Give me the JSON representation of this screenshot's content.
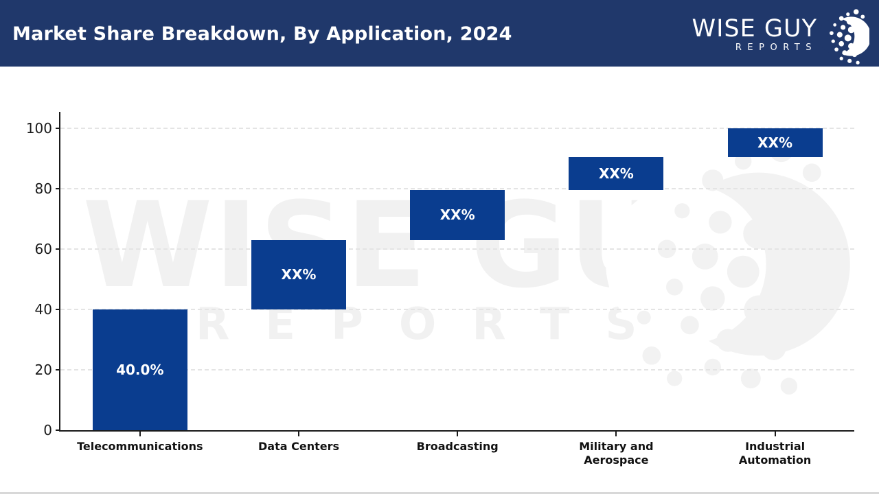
{
  "header": {
    "title": "Market Share Breakdown, By Application, 2024",
    "logo": {
      "line1": "WISE GUY",
      "line2": "REPORTS"
    }
  },
  "watermark": {
    "line1": "WISE GUY",
    "line2": "REPORTS"
  },
  "colors": {
    "header_bg": "#20386b",
    "bar": "#0a3d8f",
    "grid": "#e4e4e4",
    "axis": "#1a1a1a",
    "bar_label": "#ffffff",
    "watermark": "#f1f1f1",
    "bottom_edge": "#d8d8d8"
  },
  "chart_data": {
    "type": "bar",
    "subtype": "waterfall",
    "title": "Market Share Breakdown, By Application, 2024",
    "categories": [
      "Telecommunications",
      "Data Centers",
      "Broadcasting",
      "Military and\nAerospace",
      "Industrial\nAutomation"
    ],
    "segments": [
      {
        "category": "Telecommunications",
        "start": 0,
        "end": 40,
        "label": "40.0%"
      },
      {
        "category": "Data Centers",
        "start": 40,
        "end": 63,
        "label": "XX%"
      },
      {
        "category": "Broadcasting",
        "start": 63,
        "end": 79.5,
        "label": "XX%"
      },
      {
        "category": "Military and Aerospace",
        "start": 79.5,
        "end": 90.5,
        "label": "XX%"
      },
      {
        "category": "Industrial Automation",
        "start": 90.5,
        "end": 100,
        "label": "XX%"
      }
    ],
    "yticks": [
      0,
      20,
      40,
      60,
      80,
      100
    ],
    "ylim": [
      0,
      105
    ],
    "grid": "horizontal-dashed",
    "legend": "none",
    "xlabel": "",
    "ylabel": ""
  }
}
